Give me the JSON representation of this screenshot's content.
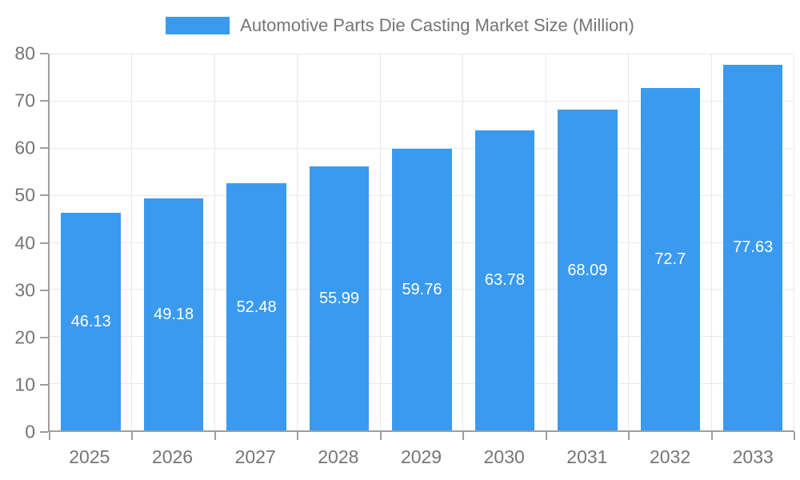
{
  "legend": {
    "label": "Automotive Parts Die Casting Market Size (Million)"
  },
  "chart_data": {
    "type": "bar",
    "title": "Automotive Parts Die Casting Market Size (Million)",
    "categories": [
      "2025",
      "2026",
      "2027",
      "2028",
      "2029",
      "2030",
      "2031",
      "2032",
      "2033"
    ],
    "series": [
      {
        "name": "Automotive Parts Die Casting Market Size (Million)",
        "values": [
          46.13,
          49.18,
          52.48,
          55.99,
          59.76,
          63.78,
          68.09,
          72.7,
          77.63
        ]
      }
    ],
    "xlabel": "",
    "ylabel": "",
    "ylim": [
      0,
      80
    ],
    "yticks": [
      0,
      10,
      20,
      30,
      40,
      50,
      60,
      70,
      80
    ],
    "grid": true,
    "legend_position": "top",
    "value_label_position": "inside-center"
  },
  "colors": {
    "bar": "#3a9af0",
    "axis_text": "#757575",
    "title_text": "#757575",
    "value_label_text": "#ffffff",
    "grid_line": "#e8e8e8",
    "axis_line": "#9e9e9e",
    "background": "#ffffff"
  }
}
